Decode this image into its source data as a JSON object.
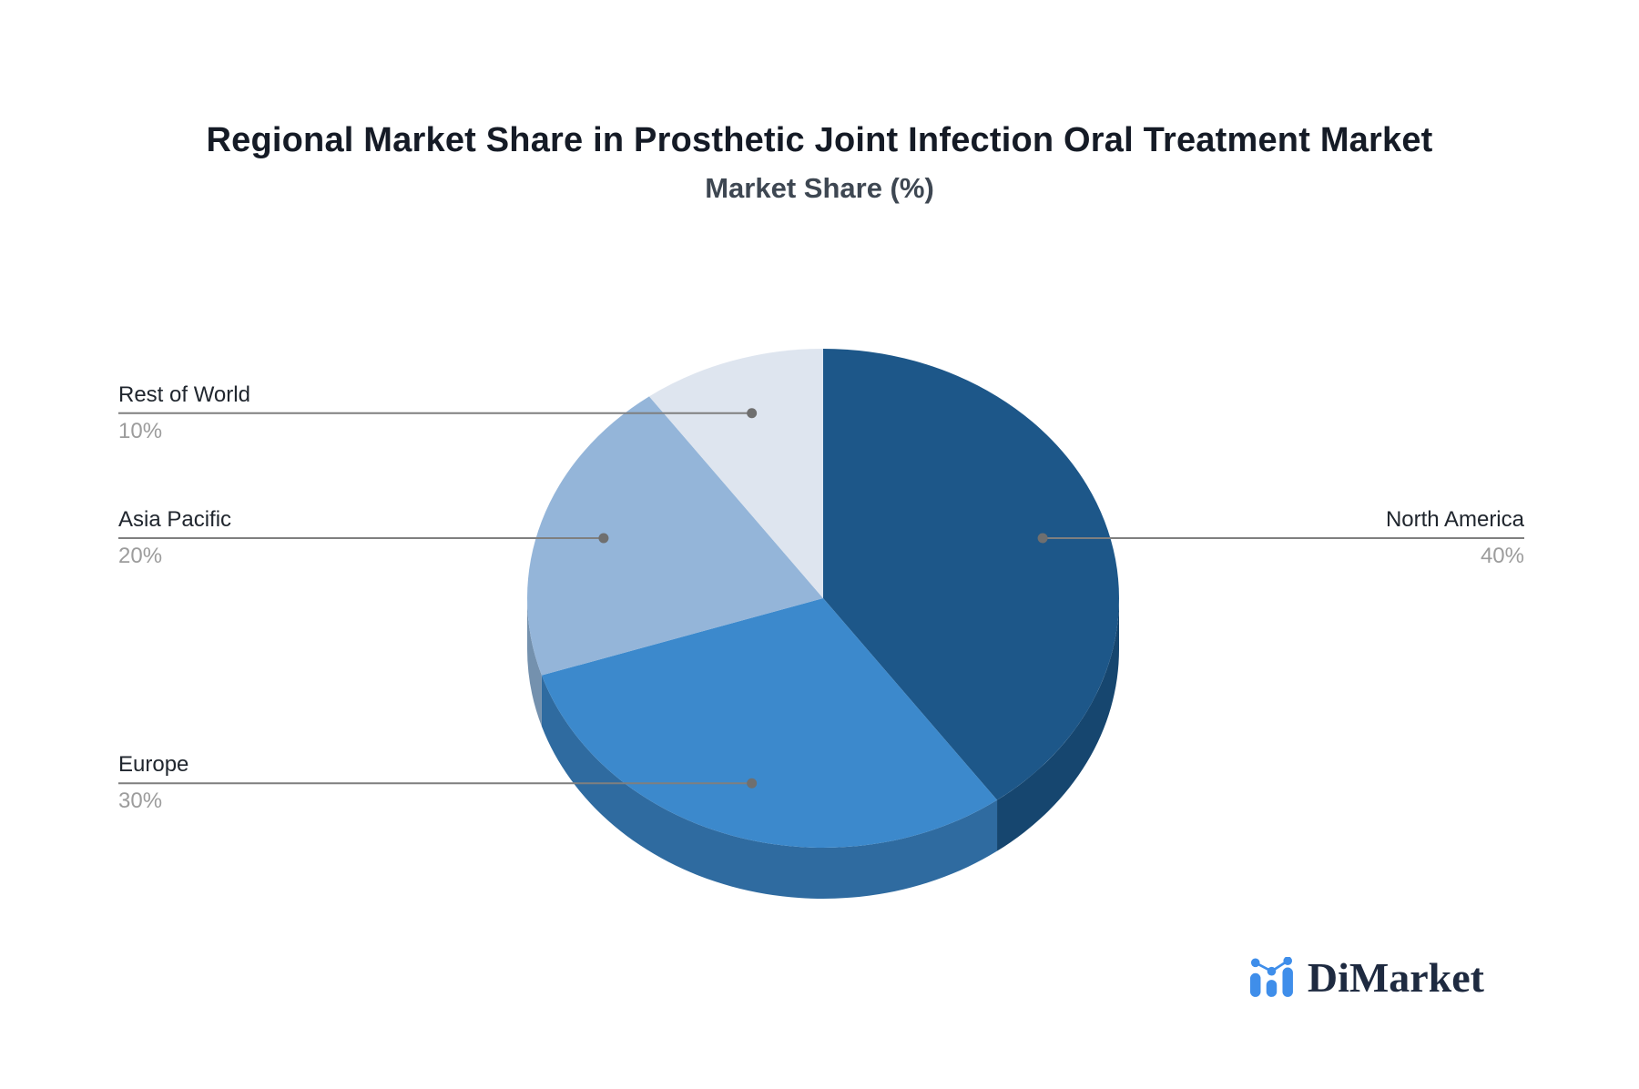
{
  "chart_data": {
    "type": "pie",
    "title": "Regional Market Share in Prosthetic Joint Infection Oral Treatment Market",
    "subtitle": "Market Share (%)",
    "unit": "%",
    "direction": "clockwise",
    "start_angle_deg": 0,
    "style": "3d-pie-with-callouts",
    "legend_position": "outside-callouts",
    "segments": [
      {
        "label": "North America",
        "value": 40,
        "display_value": "40%",
        "color": "#1D5789",
        "side_color": "#16466F"
      },
      {
        "label": "Europe",
        "value": 30,
        "display_value": "30%",
        "color": "#3C89CC",
        "side_color": "#2F6BA0"
      },
      {
        "label": "Asia Pacific",
        "value": 20,
        "display_value": "20%",
        "color": "#94B5D9",
        "side_color": "#7491AE"
      },
      {
        "label": "Rest of World",
        "value": 10,
        "display_value": "10%",
        "color": "#DEE5EF",
        "side_color": "#B2BDCE"
      }
    ]
  },
  "branding": {
    "logo_text": "DiMarket",
    "icon": "bar-line-chart-icon"
  },
  "colors": {
    "background": "#FFFFFF",
    "title_text": "#151B26",
    "subtitle_text": "#3E4752",
    "label_text": "#20262E",
    "percent_text": "#9C9C9C",
    "leader_line": "#7F7F7F",
    "leader_dot": "#6F6F6F",
    "logo_text": "#1E2A40",
    "logo_icon": "#3F8EEA"
  }
}
